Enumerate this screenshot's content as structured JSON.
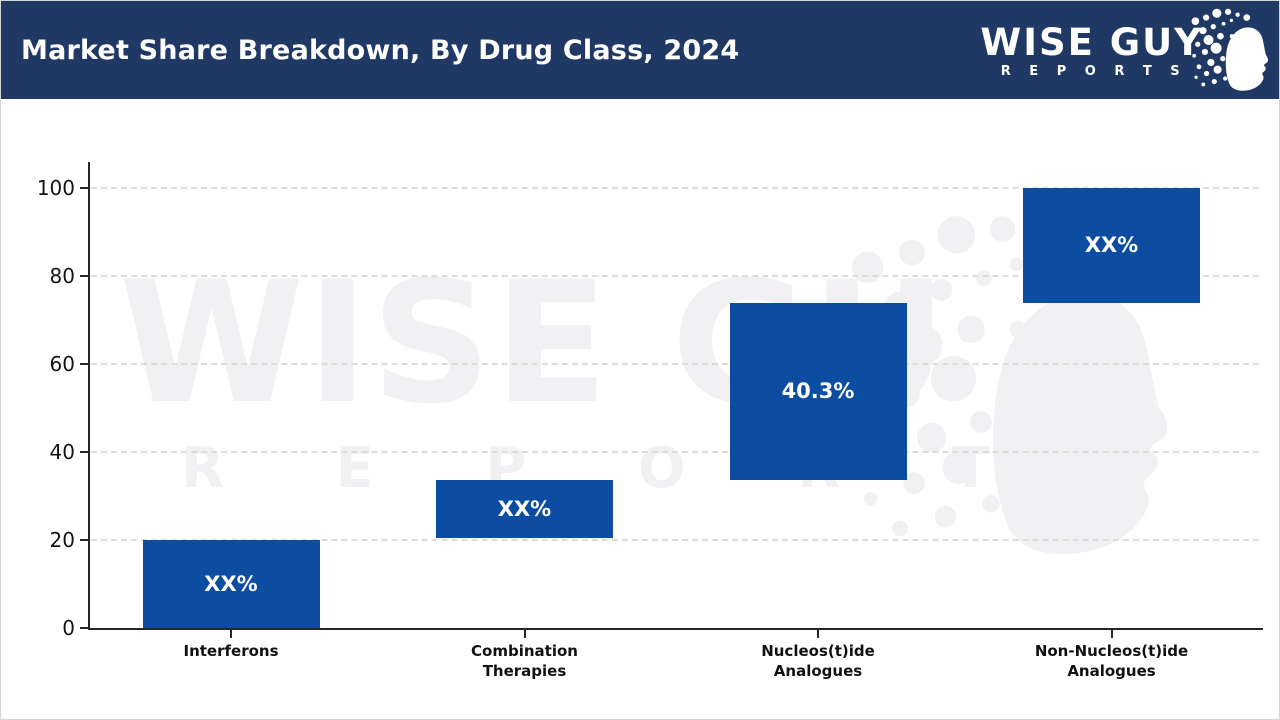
{
  "header": {
    "title": "Market Share Breakdown, By Drug Class, 2024",
    "bg_color": "#1f3864",
    "logo": {
      "brand": "WISE GUY",
      "sub": "R E P O R T S"
    }
  },
  "watermark": {
    "brand": "WISE GU",
    "sub": "R E P O R T S"
  },
  "chart_data": {
    "type": "bar",
    "variant": "floating-segment-waterfall",
    "title": "Market Share Breakdown, By Drug Class, 2024",
    "xlabel": "",
    "ylabel": "",
    "categories": [
      [
        "Interferons"
      ],
      [
        "Combination",
        "Therapies"
      ],
      [
        "Nucleos(t)ide",
        "Analogues"
      ],
      [
        "Non-Nucleos(t)ide",
        "Analogues"
      ]
    ],
    "segments": [
      {
        "category": "Interferons",
        "start": 0,
        "end": 20,
        "label": "XX%"
      },
      {
        "category": "Combination Therapies",
        "start": 20.5,
        "end": 33.7,
        "label": "XX%"
      },
      {
        "category": "Nucleos(t)ide Analogues",
        "start": 33.6,
        "end": 73.9,
        "label": "40.3%"
      },
      {
        "category": "Non-Nucleos(t)ide Analogues",
        "start": 73.9,
        "end": 100,
        "label": "XX%"
      }
    ],
    "yticks": [
      0,
      20,
      40,
      60,
      80,
      100
    ],
    "ylim": [
      0,
      105
    ],
    "bar_color": "#0d4da1",
    "bar_label_color": "#ffffff",
    "grid": {
      "show": true,
      "style": "dashed",
      "color": "#dcdcdc",
      "orientation": "horizontal"
    },
    "legend": null
  }
}
